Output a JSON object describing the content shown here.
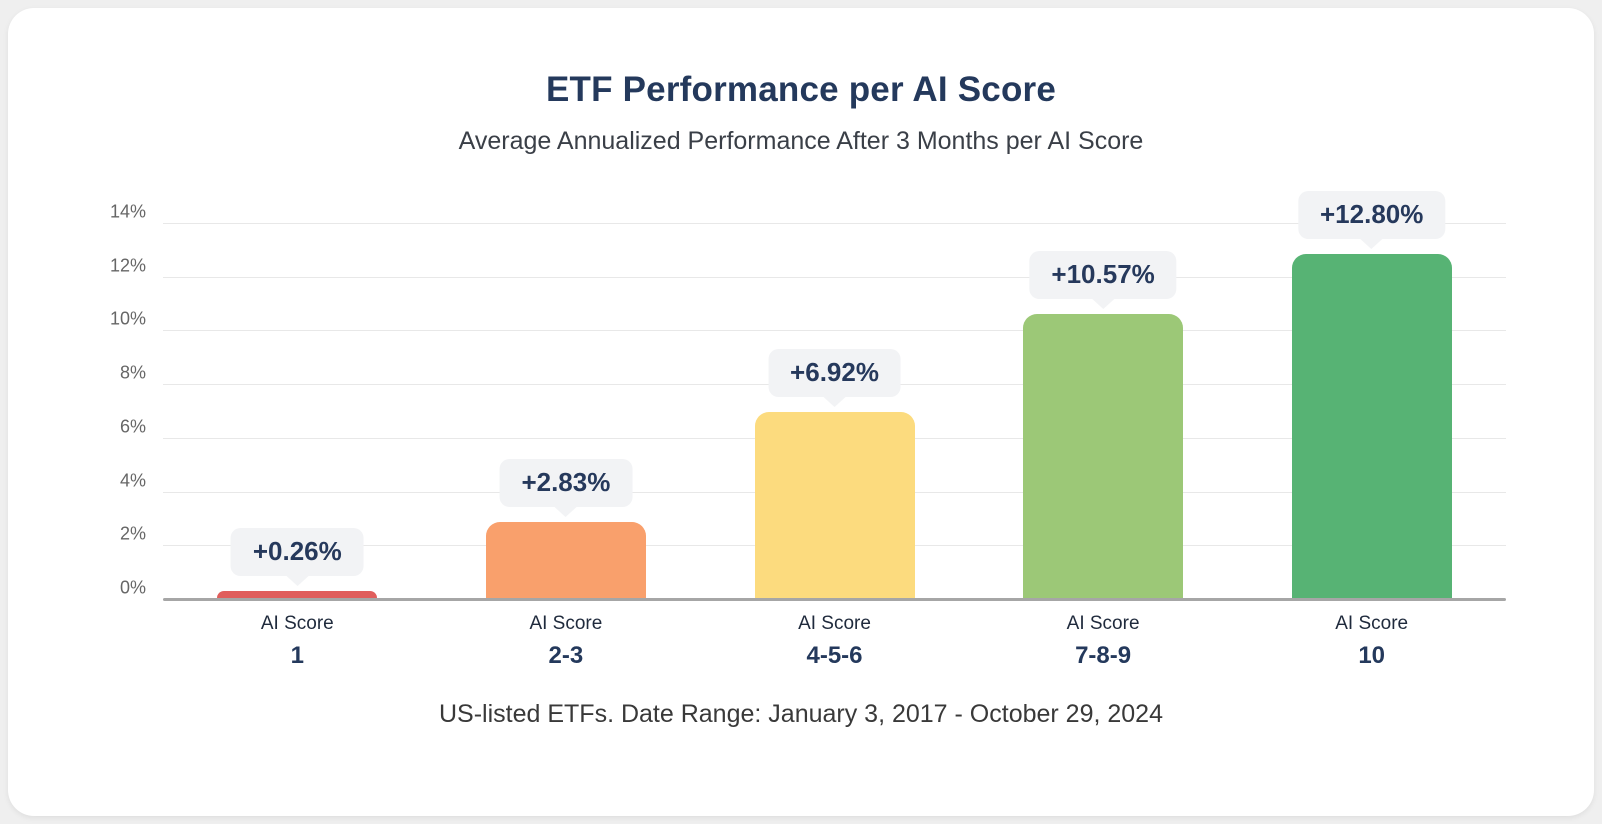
{
  "page": {
    "background_color": "#efefef",
    "card_background_color": "#ffffff"
  },
  "chart_data": {
    "type": "bar",
    "title": "ETF Performance per AI Score",
    "subtitle": "Average Annualized Performance After 3 Months per AI Score",
    "footnote": "US-listed ETFs. Date Range: January 3, 2017 - October 29, 2024",
    "xlabel": "",
    "ylabel": "",
    "axis": {
      "ymin": 0,
      "ymax": 14,
      "ystep": 2,
      "tick_suffix": "%",
      "grid": true,
      "legend": "none"
    },
    "categories": [
      "AI Score 1",
      "AI Score 2-3",
      "AI Score 4-5-6",
      "AI Score 7-8-9",
      "AI Score 10"
    ],
    "bars": [
      {
        "category_line1": "AI Score",
        "category_line2": "1",
        "value": 0.26,
        "label": "+0.26%",
        "color": "#e05e5c"
      },
      {
        "category_line1": "AI Score",
        "category_line2": "2-3",
        "value": 2.83,
        "label": "+2.83%",
        "color": "#f9a06c"
      },
      {
        "category_line1": "AI Score",
        "category_line2": "4-5-6",
        "value": 6.92,
        "label": "+6.92%",
        "color": "#fcdb7e"
      },
      {
        "category_line1": "AI Score",
        "category_line2": "7-8-9",
        "value": 10.57,
        "label": "+10.57%",
        "color": "#9cc877"
      },
      {
        "category_line1": "AI Score",
        "category_line2": "10",
        "value": 12.8,
        "label": "+12.80%",
        "color": "#57b374"
      }
    ],
    "colors": {
      "title_text": "#24395c",
      "subtitle_text": "#3a3f47",
      "tooltip_background": "#f2f3f5",
      "tooltip_text": "#26395c",
      "gridline": "#e8e8e8",
      "baseline": "#a6a6a6",
      "tick_text": "#666666",
      "footnote_text": "#393939"
    }
  }
}
